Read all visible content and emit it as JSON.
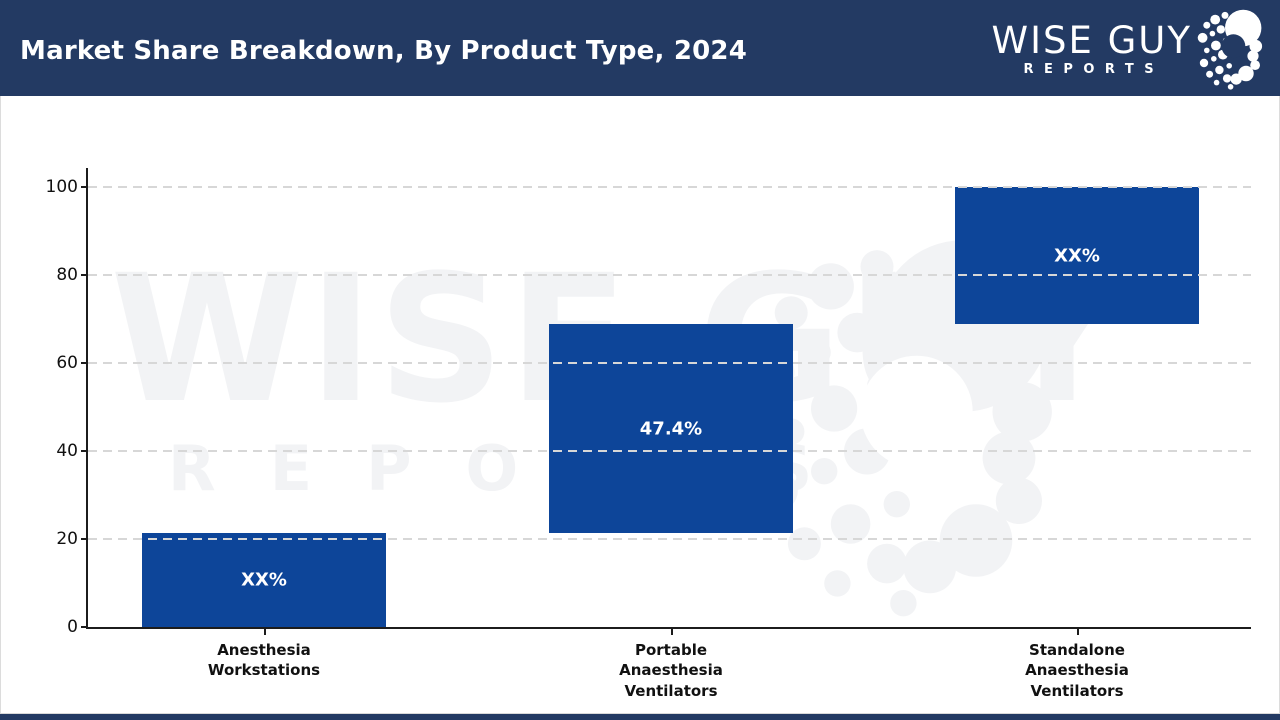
{
  "header": {
    "title": "Market Share Breakdown, By Product Type, 2024",
    "logo": {
      "line1": "WISE GUY",
      "line2": "REPORTS"
    }
  },
  "watermark": {
    "line1": "WISE GUY",
    "line2": "REPORTS"
  },
  "colors": {
    "header_bg": "#233a63",
    "bar_blue": "#0d4599",
    "gridline": "#d7d7d7",
    "axis": "#1c1c1c",
    "watermark": "#f2f3f5",
    "bar_label": "#ffffff"
  },
  "chart_data": {
    "type": "bar",
    "subtype": "waterfall",
    "title": "Market Share Breakdown, By Product Type, 2024",
    "categories": [
      [
        "Anesthesia",
        "Workstations"
      ],
      [
        "Portable",
        "Anaesthesia",
        "Ventilators"
      ],
      [
        "Standalone",
        "Anaesthesia",
        "Ventilators"
      ]
    ],
    "segments": [
      {
        "start": 0,
        "end": 21.4,
        "value": 21.4,
        "label": "XX%"
      },
      {
        "start": 21.4,
        "end": 68.8,
        "value": 47.4,
        "label": "47.4%"
      },
      {
        "start": 68.8,
        "end": 100,
        "value": 31.2,
        "label": "XX%"
      }
    ],
    "ylim": [
      0,
      100
    ],
    "yticks": [
      0,
      20,
      40,
      60,
      80,
      100
    ],
    "xlabel": "",
    "ylabel": "",
    "grid": "horizontal-dashed",
    "legend": "none",
    "bar_color": "#0d4599",
    "label_color": "#ffffff"
  }
}
